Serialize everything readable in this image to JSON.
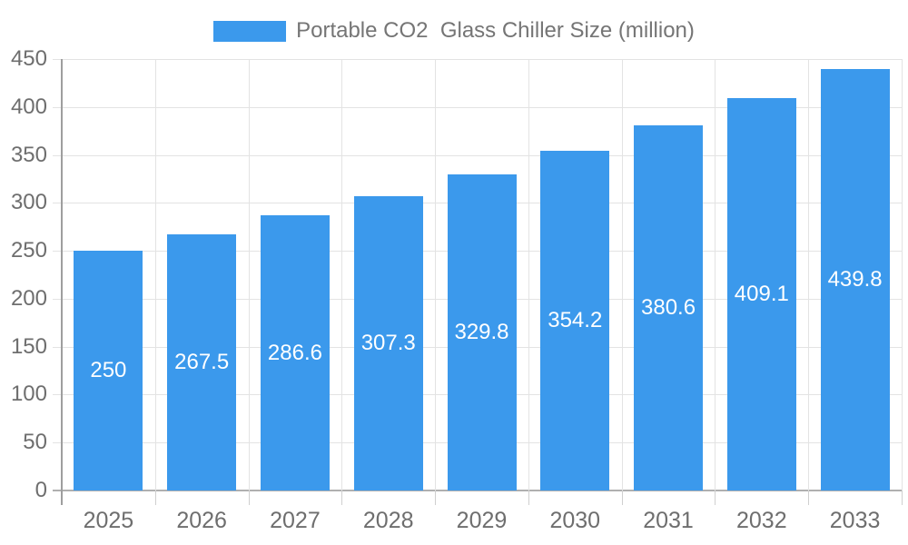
{
  "legend": {
    "label": "Portable CO2  Glass Chiller Size (million)"
  },
  "chart_data": {
    "type": "bar",
    "title": "Portable CO2  Glass Chiller Size (million)",
    "categories": [
      "2025",
      "2026",
      "2027",
      "2028",
      "2029",
      "2030",
      "2031",
      "2032",
      "2033"
    ],
    "series": [
      {
        "name": "Portable CO2  Glass Chiller Size (million)",
        "values": [
          250,
          267.5,
          286.6,
          307.3,
          329.8,
          354.2,
          380.6,
          409.1,
          439.8
        ]
      }
    ],
    "value_labels": [
      "250",
      "267.5",
      "286.6",
      "307.3",
      "329.8",
      "354.2",
      "380.6",
      "409.1",
      "439.8"
    ],
    "xlabel": "",
    "ylabel": "",
    "ylim": [
      0,
      450
    ],
    "yticks": [
      0,
      50,
      100,
      150,
      200,
      250,
      300,
      350,
      400,
      450
    ],
    "grid": true,
    "legend_position": "top",
    "colors": {
      "bar": "#3b99ec",
      "gridline": "#e3e3e3",
      "y_axis_line": "#9e9e9e",
      "zero_line": "#b0b0b0",
      "x_tick": "#cfcfcf",
      "tick_label": "#6e6e6e",
      "legend_text": "#757575",
      "value_label": "#ffffff",
      "background": "#ffffff"
    }
  }
}
